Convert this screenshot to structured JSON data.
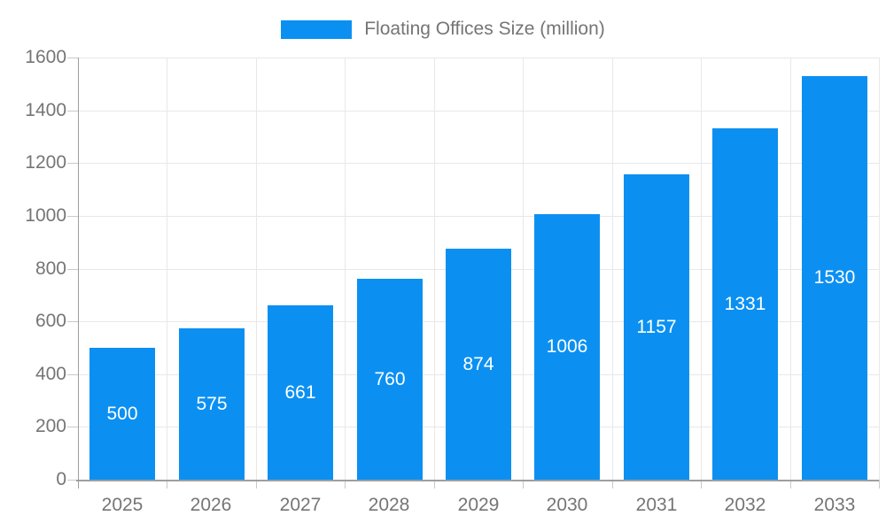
{
  "chart_data": {
    "type": "bar",
    "title": "Floating Offices Size (million)",
    "legend": {
      "position": "top-center",
      "entries": [
        {
          "label": "Floating Offices Size (million)",
          "color": "#0b90f2"
        }
      ]
    },
    "categories": [
      "2025",
      "2026",
      "2027",
      "2028",
      "2029",
      "2030",
      "2031",
      "2032",
      "2033"
    ],
    "series": [
      {
        "name": "Floating Offices Size (million)",
        "values": [
          500,
          575,
          661,
          760,
          874,
          1006,
          1157,
          1331,
          1530
        ]
      }
    ],
    "value_labels_shown": true,
    "xlabel": "",
    "ylabel": "",
    "ylim": [
      0,
      1600
    ],
    "yticks": [
      0,
      200,
      400,
      600,
      800,
      1000,
      1200,
      1400,
      1600
    ],
    "grid": true,
    "colors": {
      "bar": "#0b90f2",
      "axis_text": "#757575",
      "value_label": "#ffffff",
      "gridline": "#e8e8e8",
      "axis_line": "#9e9e9e",
      "tick": "#c9c9c9",
      "background": "#ffffff"
    }
  }
}
